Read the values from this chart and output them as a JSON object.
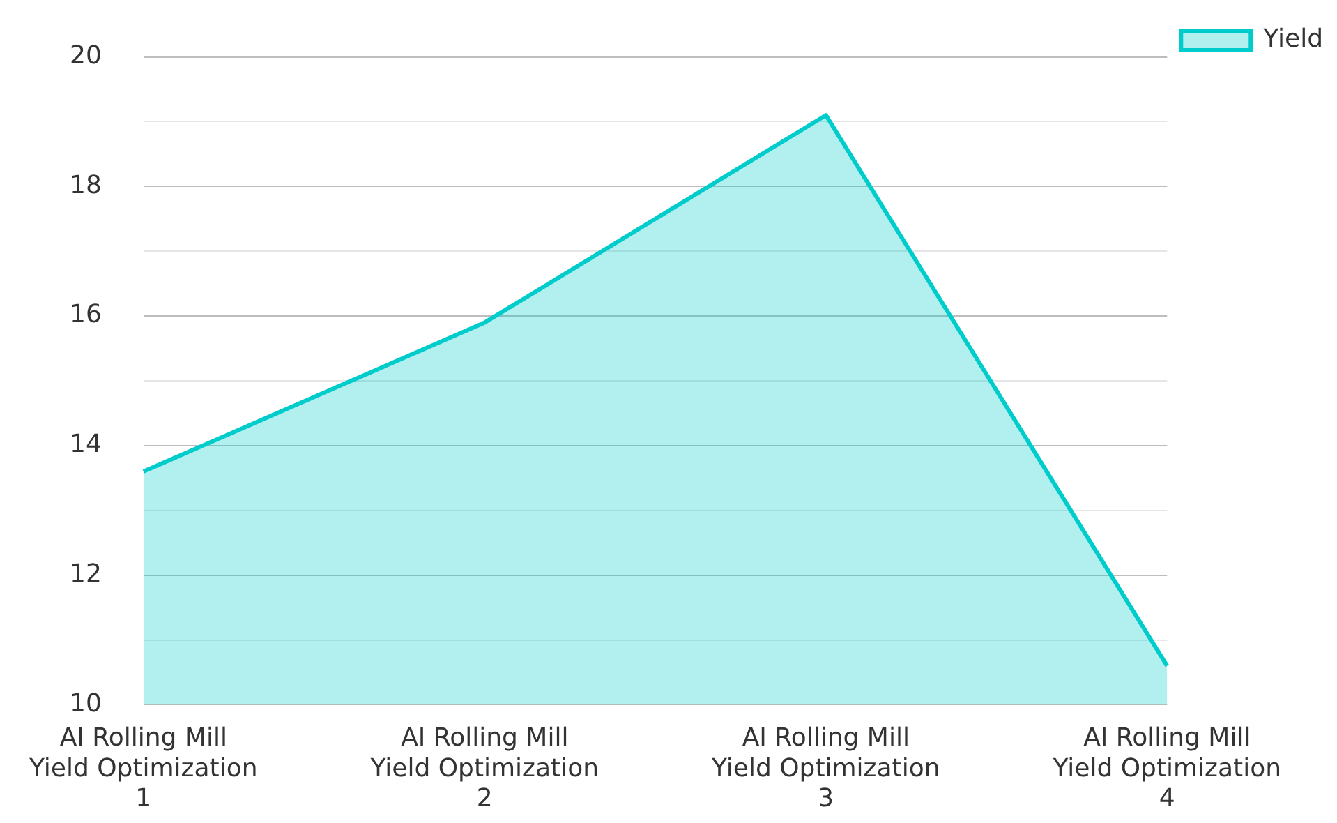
{
  "chart_data": {
    "type": "area",
    "categories": [
      "AI Rolling Mill Yield Optimization 1",
      "AI Rolling Mill Yield Optimization 2",
      "AI Rolling Mill Yield Optimization 3",
      "AI Rolling Mill Yield Optimization 4"
    ],
    "series": [
      {
        "name": "Yield",
        "color": "#00cccc",
        "values": [
          13.6,
          15.9,
          19.1,
          10.6
        ]
      }
    ],
    "ylim": [
      10,
      20
    ],
    "yticks": [
      10,
      {
        "value": 11,
        "label": null
      },
      12,
      {
        "value": 13,
        "label": null
      },
      14,
      {
        "value": 15,
        "label": null
      },
      16,
      {
        "value": 17,
        "label": null
      },
      18,
      {
        "value": 19,
        "label": null
      },
      20
    ],
    "grid": "y",
    "legend": "top right",
    "marker": "none"
  }
}
